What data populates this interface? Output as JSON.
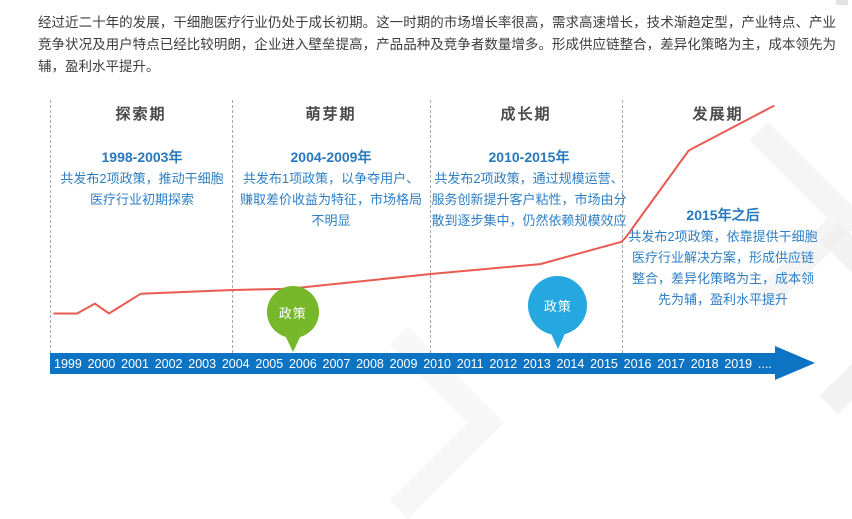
{
  "intro": {
    "text": "经过近二十年的发展，干细胞医疗行业仍处于成长初期。这一时期的市场增长率很高，需求高速增长，技术渐趋定型，产业特点、产业竞争状况及用户特点已经比较明朗，企业进入壁垒提高，产品品种及竞争者数量增多。形成供应链整合，差异化策略为主，成本领先为辅，盈利水平提升。"
  },
  "phases": [
    {
      "title": "探索期",
      "period": "1998-2003年",
      "desc": "共发布2项政策，推动干细胞医疗行业初期探索"
    },
    {
      "title": "萌芽期",
      "period": "2004-2009年",
      "desc": "共发布1项政策，以争夺用户、赚取差价收益为特征，市场格局不明显"
    },
    {
      "title": "成长期",
      "period": "2010-2015年",
      "desc": "共发布2项政策，通过规模运营、服务创新提升客户粘性，市场由分散到逐步集中，仍然依赖规模效应"
    },
    {
      "title": "发展期",
      "period": "2015年之后",
      "desc": "共发布2项政策，依靠提供干细胞医疗行业解决方案，形成供应链整合，差异化策略为主，成本领先为辅，盈利水平提升"
    }
  ],
  "markers": [
    {
      "label": "政策",
      "color": "#76b82a",
      "year": 2005.5
    },
    {
      "label": "政策",
      "color": "#25a8e0",
      "year": 2013
    }
  ],
  "timeline": {
    "years": [
      "1999",
      "2000",
      "2001",
      "2002",
      "2003",
      "2004",
      "2005",
      "2006",
      "2007",
      "2008",
      "2009",
      "2010",
      "2011",
      "2012",
      "2013",
      "2014",
      "2015",
      "2016",
      "2017",
      "2018",
      "2019"
    ],
    "ellipsis": "....",
    "bar_color": "#0d74c4"
  },
  "chart_data": {
    "type": "line",
    "title": "",
    "xlabel": "",
    "ylabel": "",
    "x_ticks": [
      "1999",
      "2000",
      "2001",
      "2002",
      "2003",
      "2004",
      "2005",
      "2006",
      "2007",
      "2008",
      "2009",
      "2010",
      "2011",
      "2012",
      "2013",
      "2014",
      "2015",
      "2016",
      "2017",
      "2018",
      "2019",
      "...."
    ],
    "x": [
      1998.75,
      1999.4,
      1999.9,
      2000.3,
      2001.2,
      2003.8,
      2005.4,
      2009.4,
      2012.5,
      2014.8,
      2014.93,
      2016.7,
      2019.1
    ],
    "y": [
      16,
      16,
      20,
      16,
      24,
      25.5,
      26,
      32,
      36,
      45,
      47,
      82,
      100
    ],
    "ylim": [
      0,
      110
    ],
    "y_axis_shown": false,
    "grid": false,
    "legend": false,
    "note": "qualitative red trend line over year timeline; y values are relative (no y-axis drawn)",
    "annotations": [
      "探索期",
      "萌芽期",
      "成长期",
      "发展期"
    ]
  },
  "colors": {
    "line_red": "#e95b52",
    "bar_blue": "#0d74c4",
    "text_blue": "#2e7fc6",
    "period_blue": "#2878be",
    "marker_green": "#76b82a",
    "marker_blue": "#25a8e0",
    "dash_gray": "#a8a8a8",
    "title_gray": "#4a4a4a"
  }
}
